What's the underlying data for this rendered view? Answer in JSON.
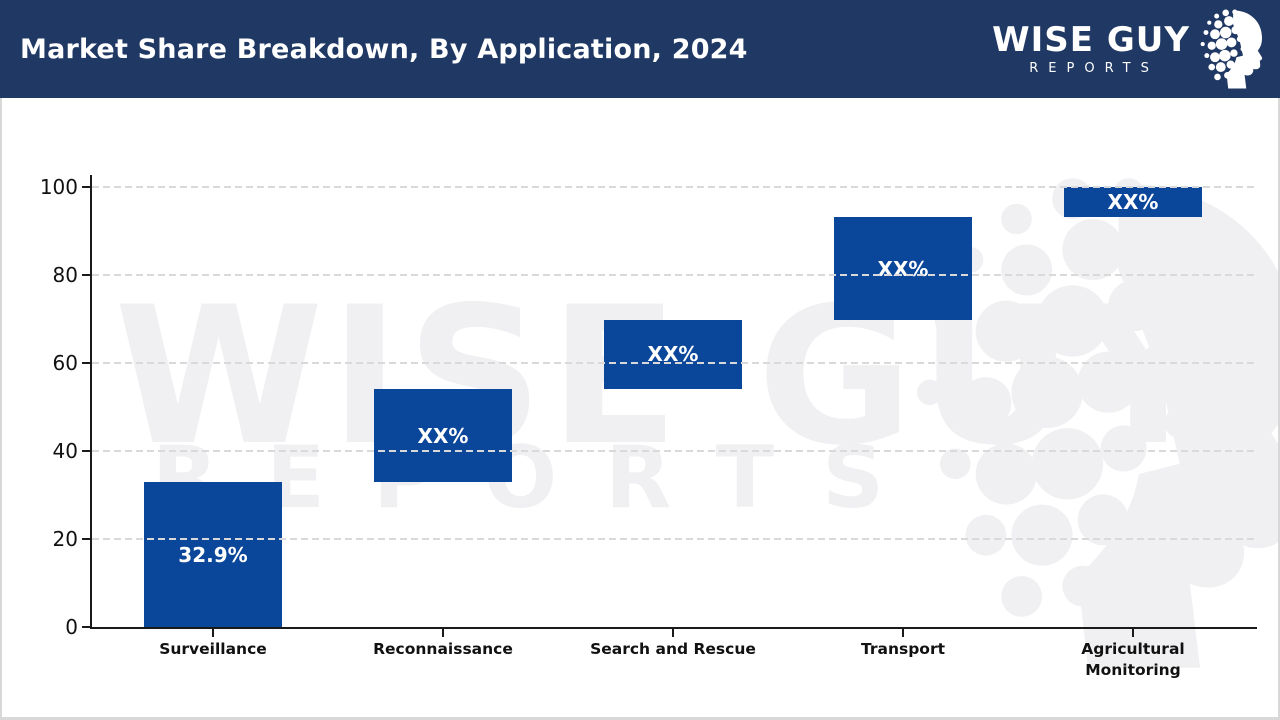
{
  "header": {
    "title": "Market Share Breakdown, By Application, 2024",
    "bg_color": "#1f3864",
    "logo": {
      "line1": "WISE GUY",
      "line2": "REPORTS"
    }
  },
  "watermark": {
    "line1": "WISE GUY",
    "line2": "REPORTS"
  },
  "chart_data": {
    "type": "bar",
    "subtype": "waterfall",
    "title": "Market Share Breakdown, By Application, 2024",
    "categories": [
      "Surveillance",
      "Reconnaissance",
      "Search and Rescue",
      "Transport",
      "Agricultural Monitoring"
    ],
    "series": [
      {
        "name": "Market Share %",
        "starts": [
          0,
          32.9,
          54.1,
          69.8,
          93.1
        ],
        "ends": [
          32.9,
          54.1,
          69.8,
          93.1,
          100
        ]
      }
    ],
    "bar_labels": [
      "32.9%",
      "XX%",
      "XX%",
      "XX%",
      "XX%"
    ],
    "xlabel": "",
    "ylabel": "",
    "yticks": [
      0,
      20,
      40,
      60,
      80,
      100
    ],
    "ylim": [
      0,
      105
    ],
    "grid": "horizontal-dashed",
    "legend": "none",
    "bar_color": "#0a4699",
    "axis_color": "#1a1a1a",
    "gridline_color": "#d9d9d9"
  }
}
